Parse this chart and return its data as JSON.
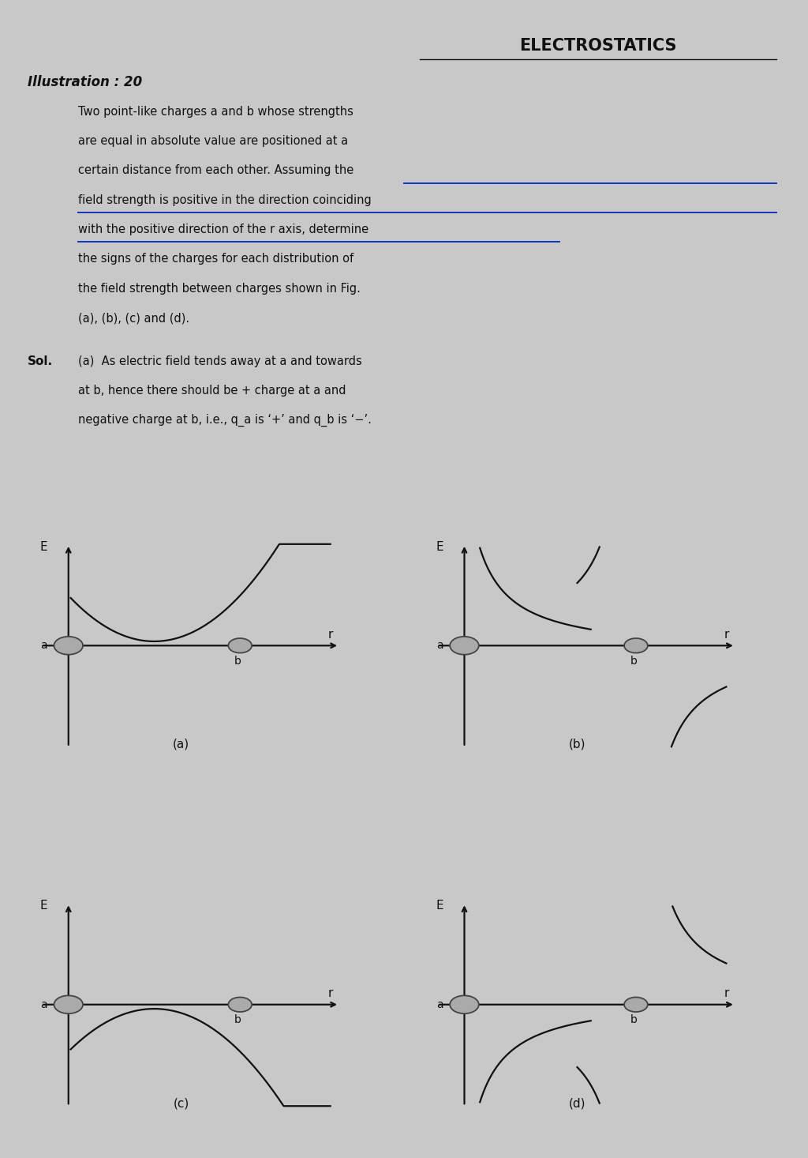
{
  "title": "ELECTROSTATICS",
  "illustration_label": "Illustration : 20",
  "problem_text_lines": [
    "Two point-like charges a and b whose strengths",
    "are equal in absolute value are positioned at a",
    "certain distance from each other. Assuming the",
    "field strength is positive in the direction coinciding",
    "with the positive direction of the r axis, determine",
    "the signs of the charges for each distribution of",
    "the field strength between charges shown in Fig.",
    "(a), (b), (c) and (d)."
  ],
  "sol_label": "Sol.",
  "sol_text_lines": [
    "(a)  As electric field tends away at a and towards",
    "at b, hence there should be + charge at a and",
    "negative charge at b, i.e., q_a is ‘+’ and q_b is ‘−’."
  ],
  "bg_color": "#c8c8c8",
  "paper_color": "#e0e0e2",
  "text_color": "#111111",
  "underline_color": "#1133bb",
  "graph_line_color": "#111111",
  "dot_color": "#aaaaaa",
  "dot_edge_color": "#444444",
  "figsize": [
    10.24,
    14.66
  ],
  "dpi": 100
}
